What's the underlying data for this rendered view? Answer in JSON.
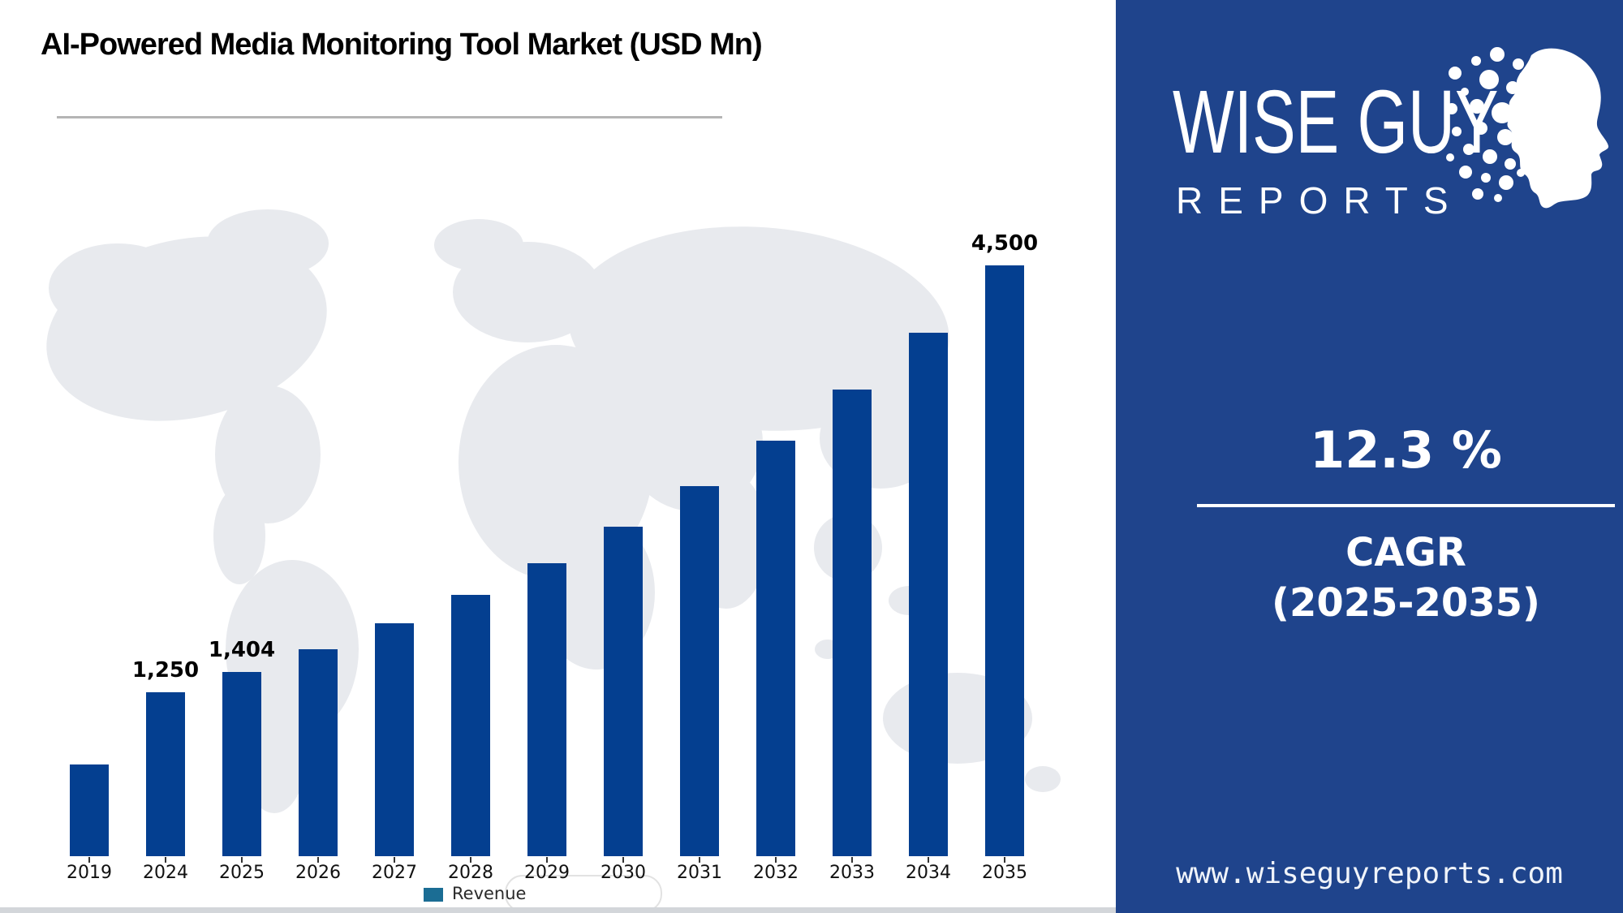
{
  "title": "AI-Powered Media Monitoring Tool Market (USD Mn)",
  "chart_data": {
    "type": "bar",
    "title": "AI-Powered Media Monitoring Tool Market (USD Mn)",
    "unit": "USD Mn",
    "categories": [
      "2019",
      "2024",
      "2025",
      "2026",
      "2027",
      "2028",
      "2029",
      "2030",
      "2031",
      "2032",
      "2033",
      "2034",
      "2035"
    ],
    "values": [
      700,
      1250,
      1404,
      1577,
      1771,
      1989,
      2233,
      2508,
      2817,
      3163,
      3552,
      3989,
      4500
    ],
    "value_labels": [
      "",
      "1,250",
      "1,404",
      "",
      "",
      "",
      "",
      "",
      "",
      "",
      "",
      "",
      "4,500"
    ],
    "legend": {
      "label": "Revenue",
      "swatch_color": "#1b6d94",
      "position": "bottom"
    },
    "bar_color": "#043f90",
    "ylim": [
      0,
      4500
    ],
    "grid": false,
    "xlabel": "",
    "ylabel": ""
  },
  "panel": {
    "logo": {
      "line1": "WISE GUY",
      "line2": "REPORTS",
      "icon": "dotted-head-profile"
    },
    "stat": {
      "value": "12.3 %",
      "label": "CAGR",
      "period": "(2025-2035)"
    },
    "website": "www.wiseguyreports.com",
    "colors": {
      "background": "#1f448c",
      "text": "#ffffff"
    }
  },
  "decorations": {
    "map_color": "#e8eaee",
    "title_rule_color": "#b5b5b5"
  }
}
